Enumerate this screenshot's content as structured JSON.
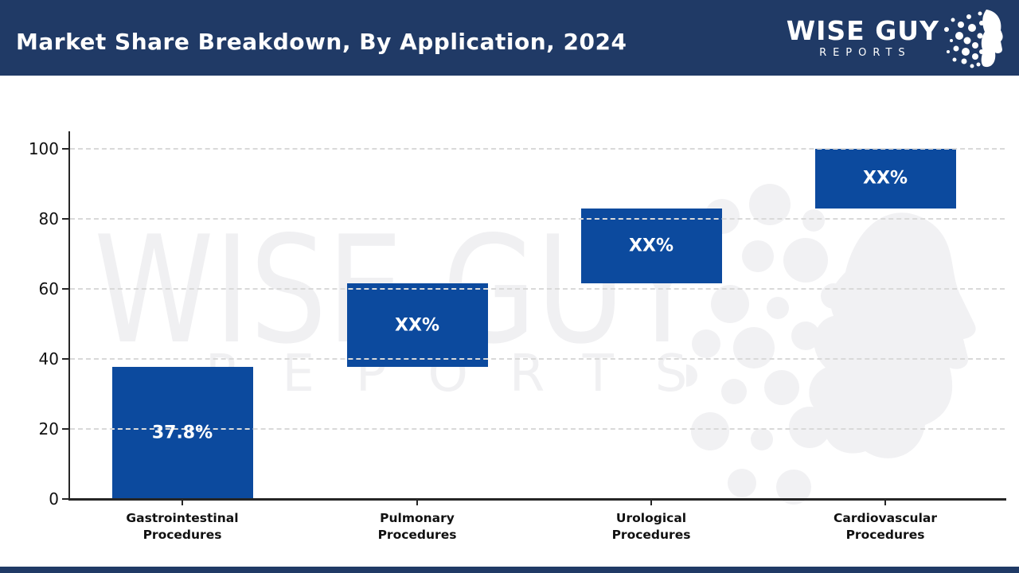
{
  "header": {
    "title": "Market Share Breakdown, By Application, 2024",
    "logo": {
      "line1": "WISE GUY",
      "line2": "REPORTS"
    }
  },
  "watermark": {
    "line1": "WISE GUY",
    "line2": "REPORTS"
  },
  "colors": {
    "header_bg": "#203a66",
    "footer_bg": "#203a66",
    "bar": "#0c4a9e",
    "bar_label": "#ffffff",
    "grid": "#d9d9d9",
    "axis": "#262626",
    "tick_label": "#111111",
    "watermark": "#f0f0f2"
  },
  "chart_data": {
    "type": "bar",
    "variant": "waterfall",
    "title": "Market Share Breakdown, By Application, 2024",
    "categories": [
      "Gastrointestinal Procedures",
      "Pulmonary Procedures",
      "Urological Procedures",
      "Cardiovascular Procedures"
    ],
    "segments": [
      {
        "start": 0,
        "end": 37.8,
        "label": "37.8%"
      },
      {
        "start": 37.8,
        "end": 61.5,
        "label": "XX%"
      },
      {
        "start": 61.5,
        "end": 83,
        "label": "XX%"
      },
      {
        "start": 83,
        "end": 100,
        "label": "XX%"
      }
    ],
    "xlabel": "",
    "ylabel": "",
    "yticks": [
      0,
      20,
      40,
      60,
      80,
      100
    ],
    "ylim": [
      0,
      105
    ],
    "grid": "dashed-horizontal",
    "legend": "none"
  }
}
